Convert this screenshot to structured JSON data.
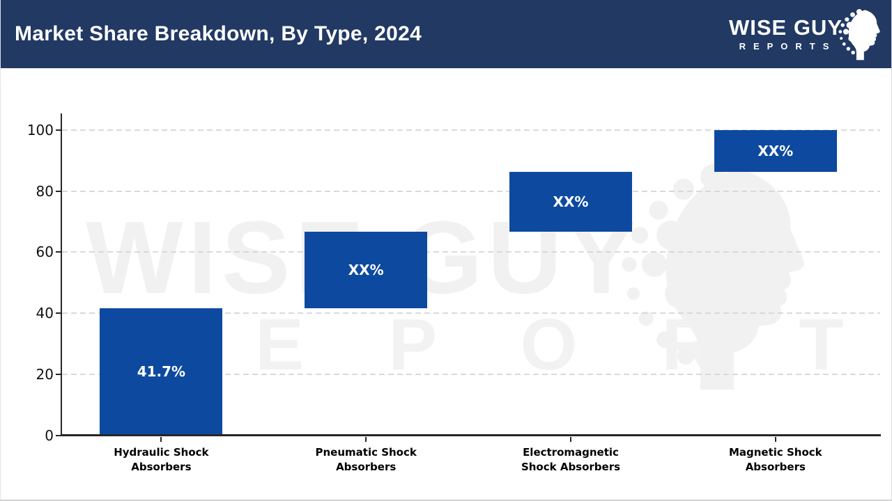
{
  "header": {
    "title": "Market Share Breakdown, By Type, 2024",
    "bg_color": "#213963",
    "logo": {
      "line1": "WISE GUY",
      "line2": "REPORTS"
    }
  },
  "watermark": {
    "line1": "WISE GUY",
    "line2": "R E P O R T S"
  },
  "chart_data": {
    "type": "bar",
    "subtype": "waterfall",
    "title": "Market Share Breakdown, By Type, 2024",
    "xlabel": "",
    "ylabel": "",
    "categories": [
      {
        "name": "Hydraulic Shock Absorbers",
        "lines": [
          "Hydraulic Shock",
          "Absorbers"
        ]
      },
      {
        "name": "Pneumatic Shock Absorbers",
        "lines": [
          "Pneumatic Shock",
          "Absorbers"
        ]
      },
      {
        "name": "Electromagnetic Shock Absorbers",
        "lines": [
          "Electromagnetic",
          "Shock Absorbers"
        ]
      },
      {
        "name": "Magnetic Shock Absorbers",
        "lines": [
          "Magnetic Shock",
          "Absorbers"
        ]
      }
    ],
    "series": [
      {
        "name": "Market Share",
        "segments": [
          {
            "category": "Hydraulic Shock Absorbers",
            "start": 0,
            "end": 41.7,
            "label": "41.7%"
          },
          {
            "category": "Pneumatic Shock Absorbers",
            "start": 41.7,
            "end": 66.7,
            "label": "XX%"
          },
          {
            "category": "Electromagnetic Shock Absorbers",
            "start": 66.7,
            "end": 86.4,
            "label": "XX%"
          },
          {
            "category": "Magnetic Shock Absorbers",
            "start": 86.4,
            "end": 100,
            "label": "XX%"
          }
        ]
      }
    ],
    "ylim": [
      0,
      105
    ],
    "yticks": [
      0,
      20,
      40,
      60,
      80,
      100
    ],
    "grid": "horizontal-dashed",
    "legend": "none",
    "colors": {
      "bar": "#0d4a9f",
      "bar_label": "#ffffff",
      "grid": "#d9d9d9",
      "axis": "#262626",
      "header_bg": "#213963",
      "title_text": "#ffffff",
      "watermark": "#f1f1f1"
    }
  }
}
